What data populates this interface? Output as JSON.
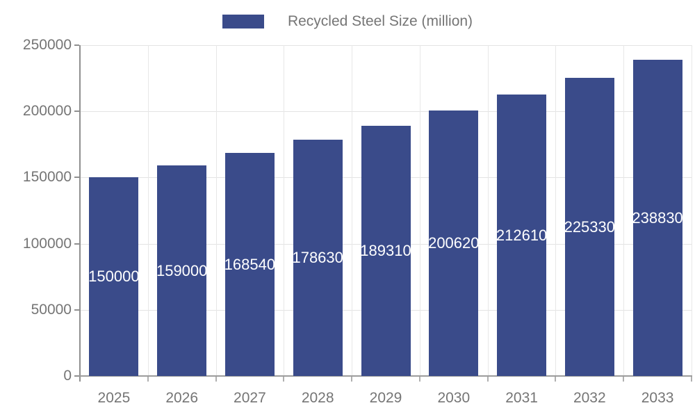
{
  "legend": {
    "series_label": "Recycled Steel Size (million)"
  },
  "chart_data": {
    "type": "bar",
    "title": "",
    "categories": [
      "2025",
      "2026",
      "2027",
      "2028",
      "2029",
      "2030",
      "2031",
      "2032",
      "2033"
    ],
    "series": [
      {
        "name": "Recycled Steel Size (million)",
        "values": [
          150000,
          159000,
          168540,
          178630,
          189310,
          200620,
          212610,
          225330,
          238830
        ]
      }
    ],
    "value_labels": [
      "150000",
      "159000",
      "168540",
      "178630",
      "189310",
      "200620",
      "212610",
      "225330",
      "238830"
    ],
    "ylim": [
      0,
      250000
    ],
    "yticks": [
      0,
      50000,
      100000,
      150000,
      200000,
      250000
    ],
    "ytick_labels": [
      "0",
      "50000",
      "100000",
      "150000",
      "200000",
      "250000"
    ],
    "grid": true,
    "legend_position": "top",
    "colors": {
      "bar": "#3A4B8A",
      "value_label": "#ffffff",
      "axis_label": "#757575",
      "gridline": "#e3e3e3",
      "axis_line": "#9c9c9c"
    }
  }
}
